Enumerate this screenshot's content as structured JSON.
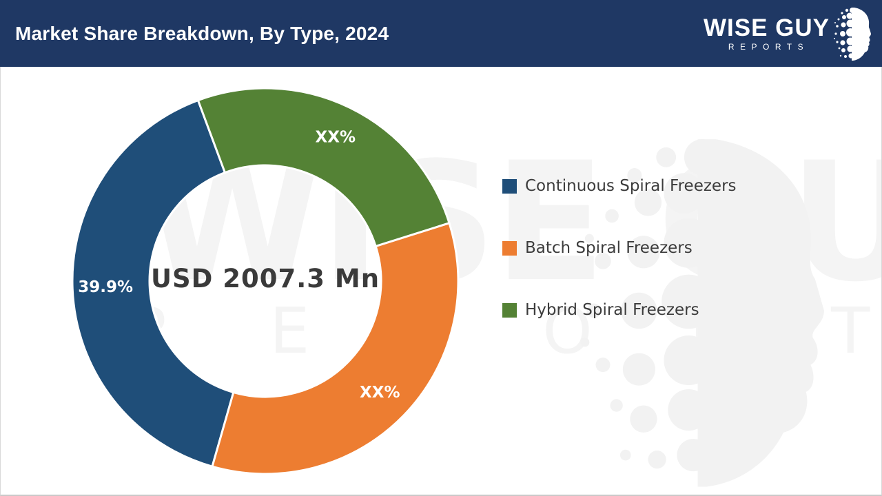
{
  "header": {
    "title": "Market Share Breakdown, By Type, 2024",
    "logo": {
      "line1": "WISE GUY",
      "line2": "REPORTS"
    }
  },
  "chart_data": {
    "type": "pie",
    "subtype": "donut",
    "title": "Market Share Breakdown, By Type, 2024",
    "center_label": "USD 2007.3 Mn",
    "start_angle_deg": 110.4,
    "direction": "counterclockwise",
    "legend_position": "right",
    "segments": [
      {
        "name": "Continuous Spiral Freezers",
        "label": "39.9%",
        "value_pct": 39.9,
        "color": "#1F4E79"
      },
      {
        "name": "Batch Spiral Freezers",
        "label": "XX%",
        "value_pct": 34.3,
        "color": "#ED7D31"
      },
      {
        "name": "Hybrid Spiral Freezers",
        "label": "XX%",
        "value_pct": 25.8,
        "color": "#548235"
      }
    ]
  },
  "watermark": {
    "line1": "WISE GUY",
    "line2": "R E P O R T S"
  },
  "colors": {
    "header_bg": "#1F3864",
    "title_text": "#FFFFFF",
    "center_text": "#3A3A3A",
    "legend_text": "#3C3C3C",
    "slice_label_text": "#FFFFFF",
    "watermark": "#F4F4F4",
    "border": "#C9C9C9"
  }
}
